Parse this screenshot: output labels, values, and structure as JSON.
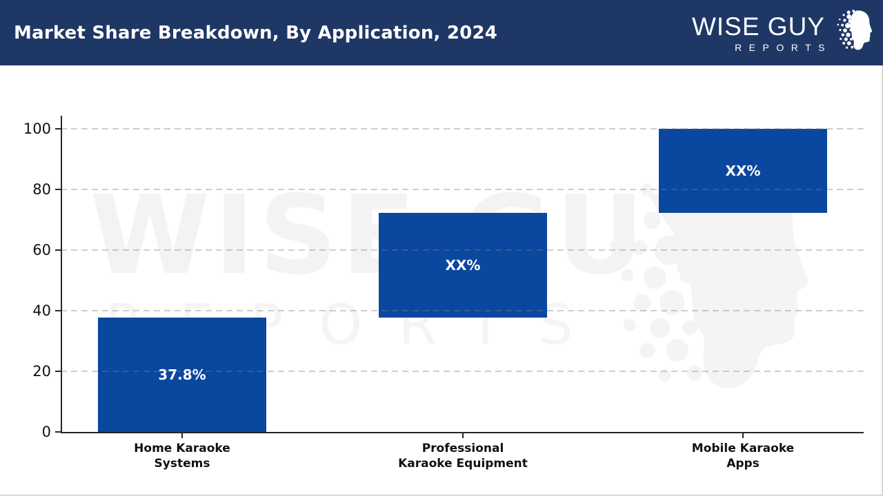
{
  "header": {
    "title": "Market Share Breakdown, By Application, 2024",
    "bg_color": "#1f3765",
    "brand": {
      "line1": "WISE GUY",
      "line2": "REPORTS"
    }
  },
  "watermark": {
    "line1": "WISE GUY",
    "line2": "REPORTS"
  },
  "chart_data": {
    "type": "bar",
    "subtype": "waterfall",
    "title": "Market Share Breakdown, By Application, 2024",
    "categories": [
      "Home Karaoke Systems",
      "Professional Karaoke Equipment",
      "Mobile Karaoke Apps"
    ],
    "category_labels": [
      [
        "Home Karaoke",
        "Systems"
      ],
      [
        "Professional",
        "Karaoke Equipment"
      ],
      [
        "Mobile Karaoke",
        "Apps"
      ]
    ],
    "segments": [
      {
        "category": "Home Karaoke Systems",
        "start": 0,
        "end": 37.8,
        "label": "37.8%"
      },
      {
        "category": "Professional Karaoke Equipment",
        "start": 37.8,
        "end": 72.3,
        "label": "XX%"
      },
      {
        "category": "Mobile Karaoke Apps",
        "start": 72.3,
        "end": 100,
        "label": "XX%"
      }
    ],
    "yticks": [
      0,
      20,
      40,
      60,
      80,
      100
    ],
    "ylim": [
      0,
      105
    ],
    "xlabel": "",
    "ylabel": "",
    "grid": "dashed-horizontal",
    "legend": "none",
    "bar_color": "#0a479e",
    "axis_color": "#262626",
    "label_color_inside_bar": "#ffffff"
  }
}
